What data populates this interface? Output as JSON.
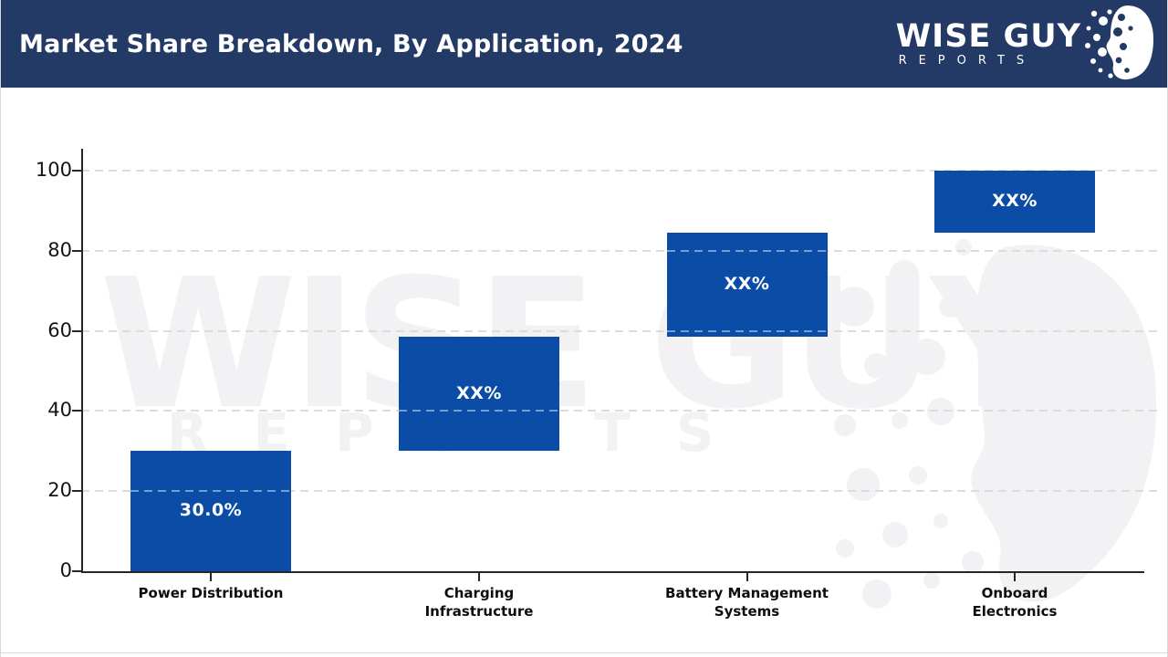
{
  "header": {
    "title": "Market Share Breakdown, By Application, 2024",
    "bg_color": "#243a66",
    "logo": {
      "line1": "WISE GUY",
      "line2": "REPORTS"
    }
  },
  "watermark": {
    "line1": "WISE GUY",
    "line2": "REPORTS"
  },
  "chart_data": {
    "type": "bar",
    "subtype": "waterfall",
    "title": "Market Share Breakdown, By Application, 2024",
    "xlabel": "",
    "ylabel": "",
    "categories": [
      "Power Distribution",
      "Charging Infrastructure",
      "Battery Management Systems",
      "Onboard Electronics"
    ],
    "segments": [
      {
        "category": "Power Distribution",
        "lines": [
          "Power Distribution"
        ],
        "start": 0,
        "end": 30,
        "label": "30.0%"
      },
      {
        "category": "Charging Infrastructure",
        "lines": [
          "Charging",
          "Infrastructure"
        ],
        "start": 30,
        "end": 58.5,
        "label": "XX%"
      },
      {
        "category": "Battery Management Systems",
        "lines": [
          "Battery Management",
          "Systems"
        ],
        "start": 58.5,
        "end": 84.5,
        "label": "XX%"
      },
      {
        "category": "Onboard Electronics",
        "lines": [
          "Onboard",
          "Electronics"
        ],
        "start": 84.5,
        "end": 100,
        "label": "XX%"
      }
    ],
    "yticks": [
      0,
      20,
      40,
      60,
      80,
      100
    ],
    "ylim": [
      0,
      105
    ],
    "grid": true,
    "legend": false,
    "bar_color": "#0b4da6",
    "gridline_color": "#dcdcdc",
    "axis_color": "#262626"
  }
}
